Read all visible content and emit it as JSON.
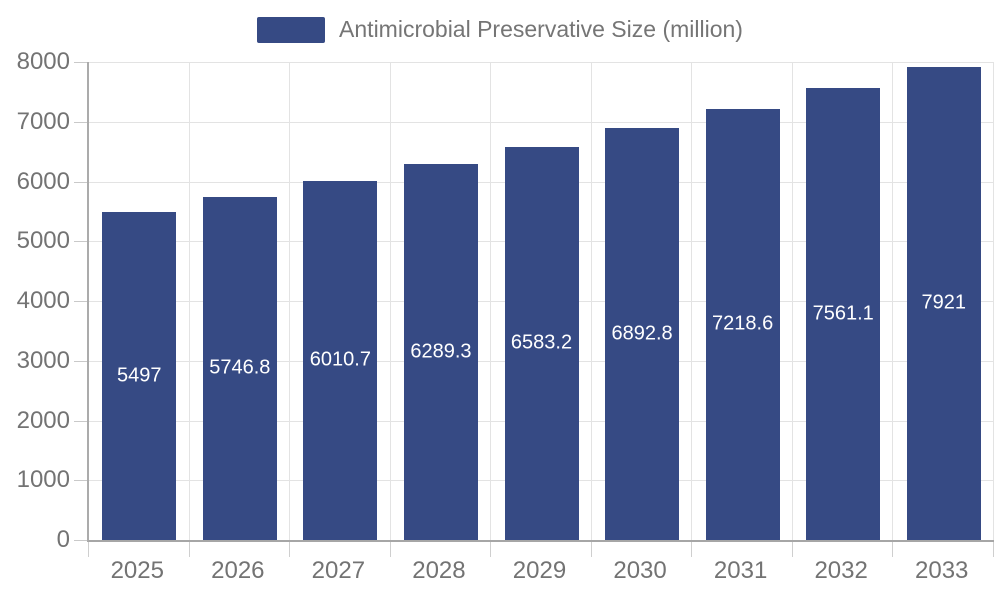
{
  "legend": {
    "label": "Antimicrobial Preservative Size (million)"
  },
  "chart_data": {
    "type": "bar",
    "title": "",
    "xlabel": "",
    "ylabel": "",
    "categories": [
      "2025",
      "2026",
      "2027",
      "2028",
      "2029",
      "2030",
      "2031",
      "2032",
      "2033"
    ],
    "series": [
      {
        "name": "Antimicrobial Preservative Size (million)",
        "values": [
          5497,
          5746.8,
          6010.7,
          6289.3,
          6583.2,
          6892.8,
          7218.6,
          7561.1,
          7921
        ]
      }
    ],
    "data_labels": [
      "5497",
      "5746.8",
      "6010.7",
      "6289.3",
      "6583.2",
      "6892.8",
      "7218.6",
      "7561.1",
      "7921"
    ],
    "ylim": [
      0,
      8000
    ],
    "ytick_step": 1000,
    "ytick_labels": [
      "0",
      "1000",
      "2000",
      "3000",
      "4000",
      "5000",
      "6000",
      "7000",
      "8000"
    ],
    "grid": true,
    "legend_position": "top-center",
    "bar_color": "#364A84",
    "value_label_color": "#ffffff",
    "axis_label_color": "#737373"
  }
}
